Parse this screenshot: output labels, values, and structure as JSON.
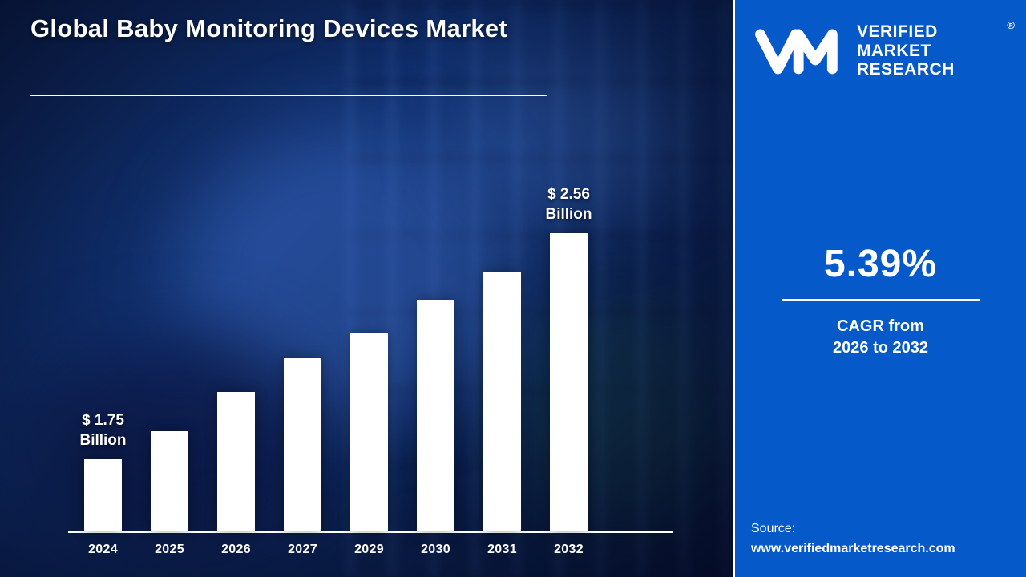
{
  "title": "Global Baby Monitoring Devices Market",
  "logo": {
    "lines": [
      "VERIFIED",
      "MARKET",
      "RESEARCH"
    ],
    "registered": "®"
  },
  "stats": {
    "cagr_value": "5.39%",
    "cagr_line1": "CAGR from",
    "cagr_line2": "2026 to 2032"
  },
  "source": {
    "label": "Source:",
    "url": "www.verifiedmarketresearch.com"
  },
  "colors": {
    "panel_blue": "#0659c9",
    "background_navy": "#0a1c45",
    "bar_color": "#ffffff",
    "text_white": "#ffffff"
  },
  "chart_data": {
    "type": "bar",
    "title": "Global Baby Monitoring Devices Market",
    "unit": "USD Billion",
    "categories": [
      "2024",
      "2025",
      "2026",
      "2027",
      "2029",
      "2030",
      "2031",
      "2032"
    ],
    "values": [
      1.75,
      1.85,
      1.99,
      2.11,
      2.2,
      2.32,
      2.42,
      2.56
    ],
    "ylim": [
      1.49,
      2.56
    ],
    "grid": false,
    "legend": false,
    "bar_color": "#ffffff",
    "annotations": [
      {
        "index": 0,
        "lines": [
          "$ 1.75",
          "Billion"
        ]
      },
      {
        "index": 7,
        "lines": [
          "$ 2.56",
          "Billion"
        ]
      }
    ]
  }
}
